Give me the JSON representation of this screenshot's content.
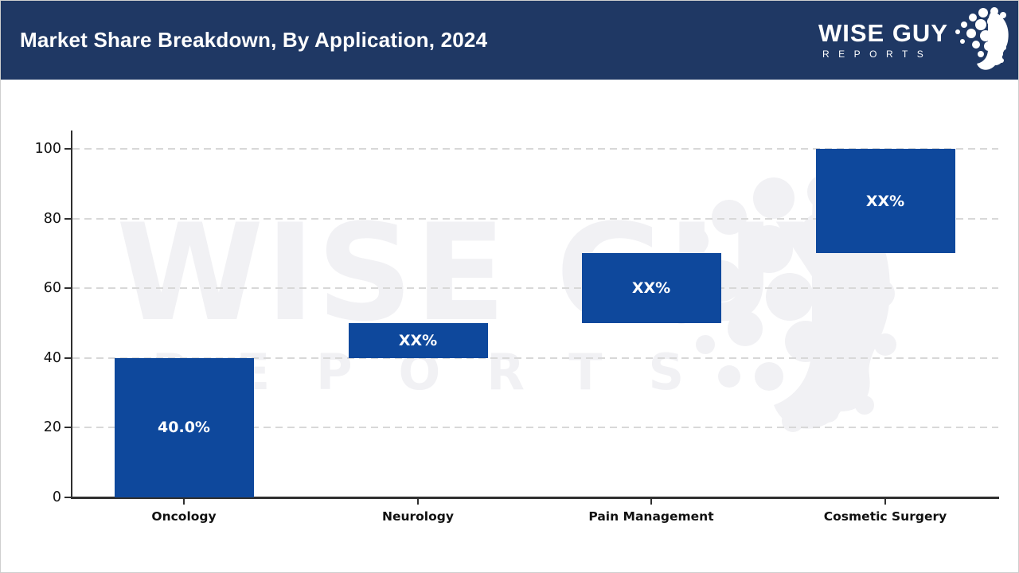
{
  "header": {
    "title": "Market Share Breakdown, By Application, 2024",
    "logo": {
      "name": "Wise Guy Reports",
      "line1": "WISE GUY",
      "line2": "REPORTS"
    }
  },
  "watermark": {
    "line1": "WISE GUY",
    "line2": "REPORTS"
  },
  "colors": {
    "header_bg": "#1F3864",
    "header_text": "#FFFFFF",
    "bar_fill": "#0E489C",
    "bar_label": "#FFFFFF",
    "grid_line": "#D8D8D8",
    "axis_line": "#2F2F2F",
    "tick_label": "#111111",
    "watermark": "#F1F1F4",
    "page_bg": "#FFFFFF",
    "page_border": "#CFCFCF"
  },
  "chart_data": {
    "type": "bar",
    "subtype": "waterfall",
    "title": "Market Share Breakdown, By Application, 2024",
    "categories": [
      "Oncology",
      "Neurology",
      "Pain Management",
      "Cosmetic Surgery"
    ],
    "series": [
      {
        "name": "Market Share (%)",
        "segments": [
          {
            "category": "Oncology",
            "start": 0,
            "end": 40,
            "label": "40.0%"
          },
          {
            "category": "Neurology",
            "start": 40,
            "end": 50,
            "label": "XX%"
          },
          {
            "category": "Pain Management",
            "start": 50,
            "end": 70,
            "label": "XX%"
          },
          {
            "category": "Cosmetic Surgery",
            "start": 70,
            "end": 100,
            "label": "XX%"
          }
        ]
      }
    ],
    "xlabel": "",
    "ylabel": "",
    "ylim": [
      0,
      100
    ],
    "yticks": [
      0,
      20,
      40,
      60,
      80,
      100
    ],
    "grid": "horizontal dashed",
    "legend": "none",
    "bar_value_labels": [
      "40.0%",
      "XX%",
      "XX%",
      "XX%"
    ]
  }
}
